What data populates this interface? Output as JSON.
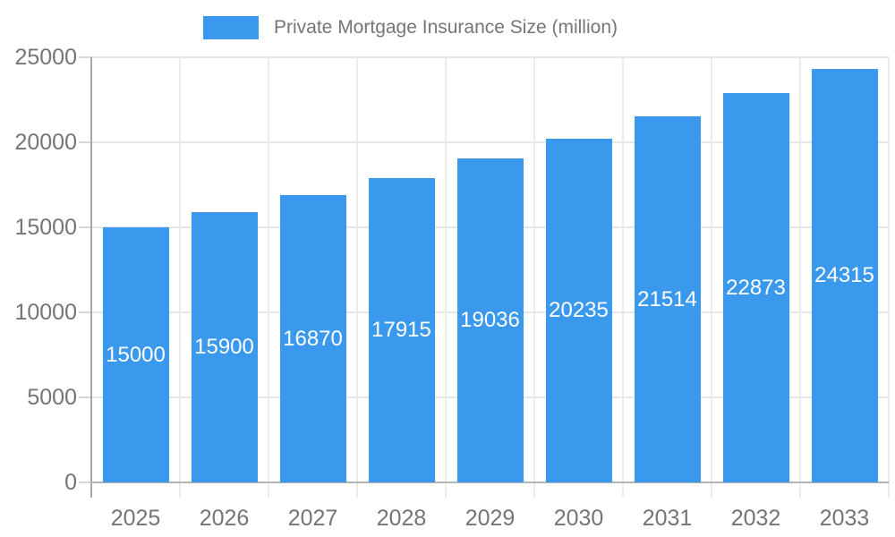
{
  "legend": {
    "label": "Private Mortgage Insurance Size (million)"
  },
  "colors": {
    "background": "#FFFFFF",
    "bar": "#3A99EC",
    "grid_horizontal": "#E6E6E6",
    "grid_vertical": "#EBEBEB",
    "axis_y": "#A6A6A6",
    "axis_x": "#B5B5B5",
    "y_tick": "#D6D6D6",
    "label_text": "#757575",
    "bar_label_text": "#FFFFFF"
  },
  "chart_data": {
    "type": "bar",
    "title": "Private Mortgage Insurance Size (million)",
    "series_name": "Private Mortgage Insurance Size (million)",
    "categories": [
      "2025",
      "2026",
      "2027",
      "2028",
      "2029",
      "2030",
      "2031",
      "2032",
      "2033"
    ],
    "values": [
      15000,
      15900,
      16870,
      17915,
      19036,
      20235,
      21514,
      22873,
      24315
    ],
    "xlabel": "",
    "ylabel": "",
    "ylim": [
      0,
      25000
    ],
    "y_ticks": [
      0,
      5000,
      10000,
      15000,
      20000,
      25000
    ],
    "grid": true,
    "legend_position": "top-center",
    "bar_labels_shown": true,
    "bar_label_position": "center"
  }
}
